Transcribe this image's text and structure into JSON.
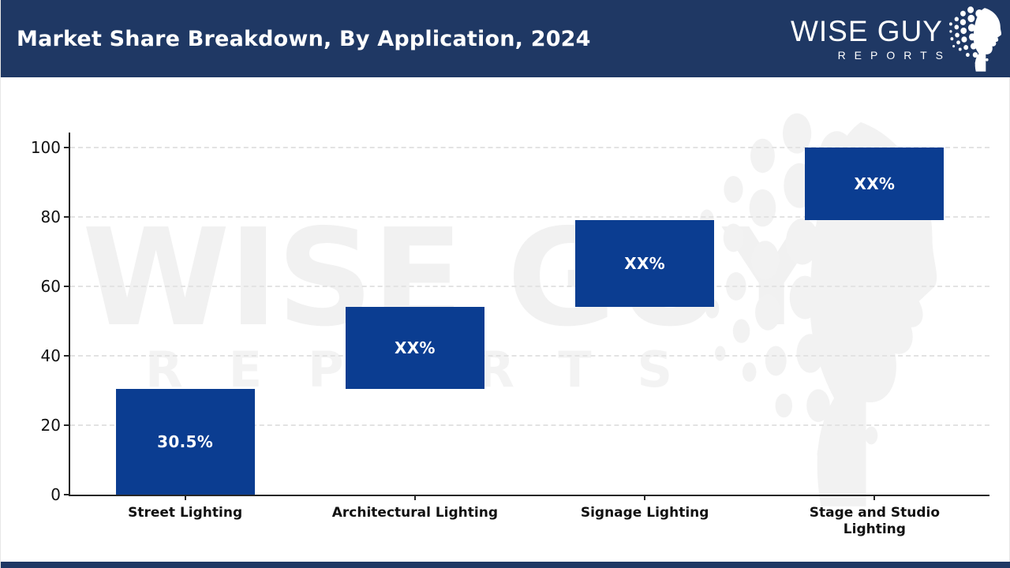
{
  "header": {
    "title": "Market Share Breakdown, By Application, 2024",
    "logo": {
      "line1": "WISE GUY",
      "line2": "REPORTS"
    }
  },
  "watermark": {
    "line1": "WISE GUY",
    "line2": "REPORTS"
  },
  "colors": {
    "header_bg": "#1f3864",
    "bar": "#0b3d91",
    "grid": "#e3e3e3",
    "axis": "#262626",
    "value_label": "#ffffff",
    "watermark": "#f1f1f1"
  },
  "chart_data": {
    "type": "bar",
    "subtype": "waterfall",
    "title": "Market Share Breakdown, By Application, 2024",
    "categories": [
      "Street Lighting",
      "Architectural Lighting",
      "Signage Lighting",
      "Stage and Studio Lighting"
    ],
    "segments": [
      {
        "category": "Street Lighting",
        "start": 0,
        "end": 30.5,
        "label": "30.5%"
      },
      {
        "category": "Architectural Lighting",
        "start": 30.5,
        "end": 54,
        "label": "XX%"
      },
      {
        "category": "Signage Lighting",
        "start": 54,
        "end": 79,
        "label": "XX%"
      },
      {
        "category": "Stage and Studio Lighting",
        "start": 79,
        "end": 100,
        "label": "XX%"
      }
    ],
    "yticks": [
      0,
      20,
      40,
      60,
      80,
      100
    ],
    "ylim": [
      0,
      100
    ],
    "xlabel": "",
    "ylabel": "",
    "grid": "horizontal-dashed",
    "legend": "none",
    "bar_color": "#0b3d91",
    "value_label_color": "#ffffff"
  }
}
